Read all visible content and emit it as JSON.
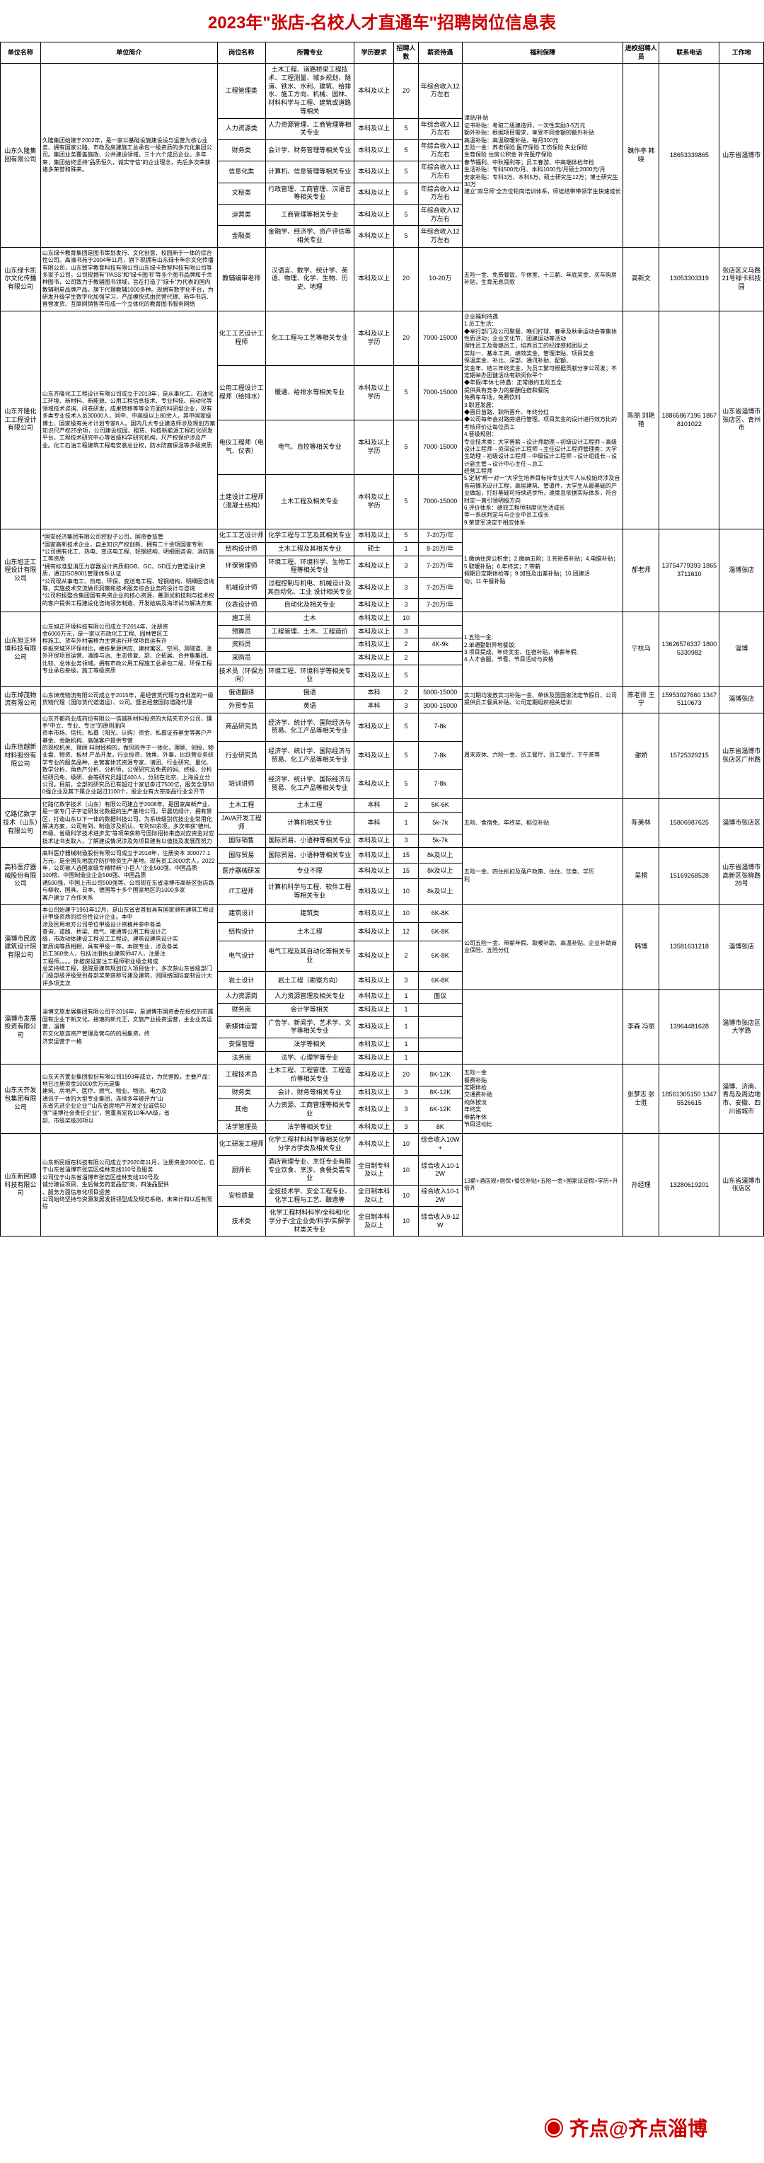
{
  "title": "2023年\"张店-名校人才直通车\"招聘岗位信息表",
  "headers": [
    "单位名称",
    "单位简介",
    "岗位名称",
    "所需专业",
    "学历要求",
    "招聘人数",
    "薪资待遇",
    "福利保障",
    "进校招聘人员",
    "联系电话",
    "工作地"
  ],
  "watermark": "齐点@齐点淄博",
  "groups": [
    {
      "company": "山东久隆集团有限公司",
      "intro": "久隆集团始建于2002年，是一家以基础设施建设设与运营为核心业务、拥有国家公路、市政及房建施工总承包一级资质的多元化集团公司。集团业务覆盖施政、公共建设领域，三十六个成员企业。多年来，集团始终坚持\"品质恒久，诚实守信\"的企业理念，先后多次荣获诸多荣誉和殊荣。",
      "rows": [
        {
          "pos": "工程管理类",
          "major": "土木工程、道路桥梁工程技术、工程测量、城乡规划、隧道、铁水、水利、建筑、给排水、施工方向、机械、园林、材料科学与工程、建筑或道路等相关",
          "edu": "本科及以上",
          "num": "20",
          "sal": "年综合收入12万左右"
        },
        {
          "pos": "人力资源类",
          "major": "人力资源管理、工商管理等相关专业",
          "edu": "本科及以上",
          "num": "5",
          "sal": "年综合收入12万左右"
        },
        {
          "pos": "财务类",
          "major": "会计学、财务管理等相关专业",
          "edu": "本科及以上",
          "num": "5",
          "sal": "年综合收入12万左右"
        },
        {
          "pos": "信息化类",
          "major": "计算机、信息管理等相关专业",
          "edu": "本科及以上",
          "num": "5",
          "sal": "年综合收入12万左右"
        },
        {
          "pos": "文秘类",
          "major": "行政管理、工商管理、汉语言等相关专业",
          "edu": "本科及以上",
          "num": "5",
          "sal": "年综合收入12万左右"
        },
        {
          "pos": "运营类",
          "major": "工商管理等相关专业",
          "edu": "本科及以上",
          "num": "5",
          "sal": "年综合收入12万左右"
        },
        {
          "pos": "金融类",
          "major": "金融学、经济学、资产评估等相关专业",
          "edu": "本科及以上",
          "num": "5",
          "sal": "年综合收入12万左右"
        }
      ],
      "welfare": "津贴/补贴\n证书补贴：考取二级建造师，一次性奖励3-5万元\n额外补贴：根据项目需求，享受不同金额的额外补贴\n高温补贴：高温取暖补贴，每月300元\n五险一金：养老保险 医疗保险 工伤保险 失业保险\n生育保险 住房公积金 补充医疗保险\n春节福利、中秋福利等；员工春游、中高端体检年检\n生活补贴：专科500元/月、本科1000元/月硕士2000元/月\n安家补贴：专科3万、本科5万、硕士研究生12万；博士研究生30万\n建立\"双导师\"全方位轮岗培训体系，师徒结带带领学生快速成长",
      "contact": "魏作亭 韩晓",
      "tel": "18653339865",
      "loc": "山东省淄博市"
    },
    {
      "company": "山东绿卡凯尔文化传播有限公司",
      "intro": "山东绿卡教育集团是图书策划发行、文化创意、校园新于一体的综合性公司。高清书苑于2004年11月，旗下现拥有山东绿卡年尔文化传播有限公司，山东致学教育科技有限公司山东绿卡数智科技有限公司等多家子公司。公司现拥有\"PASS\"和\"绿卡图书\"等多个图书品牌和千余种图书，公司致力于教辅图书领域，旨在打造了\"绿卡\"为代表的国内教辅明星品牌产品，旗下代理教辅1000多种。现拥有数字化平台，为研发升级学生数字化加强学习，产品模快式由民营代理、新华书店、直营发货、互联网销售等形成一个立体化的教育图书服务网络",
      "rows": [
        {
          "pos": "教辅编审老师",
          "major": "汉语言、数学、统计学、英语、物理、化学、生物、历史、地理",
          "edu": "本科及以上",
          "num": "20",
          "sal": "10-20万"
        }
      ],
      "welfare": "五险一金、免费餐饭、午休室、十三薪、年底奖金、买车购房补贴，生育无息贷款",
      "contact": "高新文",
      "tel": "13053303319",
      "loc": "张店区义乌路21号绿卡科技园"
    },
    {
      "company": "山东齐隆化工工程设计有限公司",
      "intro": "山东齐隆化工工程设计有限公司成立于2013年，是从事化工、石油化工环境、新材料、新能源、公用工程信息技术、专业科技、自动化等领域技术咨询、问卷研发，成果转移等等全方面的科研型企业，现有多类专业技术人员30000人，同中、中高级以上80余人，其中国家级博士、国家级有关才计划专家8人。国内几大专业建造师涉及规划方案知识尺产权25余项，公司建设校园、租赁、科技新能源工程石化研发平台，工程技术研究中心等省级科学研究机构，尺产权保护涉及产业。化工石油工程建筑工程电安装总业权，防水防腐保温等多级资质",
      "rows": [
        {
          "pos": "化工工艺设计工程师",
          "major": "化工工程与工艺等相关专业",
          "edu": "本科及以上学历",
          "num": "20",
          "sal": "7000-15000"
        },
        {
          "pos": "公用工程设计工程师（给排水）",
          "major": "暖通、给排水等相关专业",
          "edu": "本科及以上学历",
          "num": "5",
          "sal": "7000-15000"
        },
        {
          "pos": "电仪工程师（电气、仪表）",
          "major": "电气、自控等相关专业",
          "edu": "本科及以上学历",
          "num": "5",
          "sal": "7000-15000"
        },
        {
          "pos": "土建设计工程师（混凝土结构）",
          "major": "土木工程及相关专业",
          "edu": "本科及以上学历",
          "num": "5",
          "sal": "7000-15000"
        }
      ],
      "welfare": "企业福利待遇\n1.员工生活：\n◆举行部门及公司聚餐、晚们打球、春季及秋季运动会等集体性质活动；企业文化节、团建运动等活动\n理性员工及骨骼员工，培养员工的纪律感和团队之\n实际一、基本工资、绩效奖金、管理津贴、项目奖金\n保温奖金、补比、深部、通讯补助、配额、\n奖金年、结三年终奖金，为员工繁可根据贡献分享公司发；不定期举办团健活动有职闵你平个\n◆年假/年休七待遇：正常缴约五险五全\n提供具有竞争力的薪酬住宿和餐院\n免费车车场，免费饮料\n3.职涯发展：\n◆晋日苗路、职所晋升、年终分红\n◆公司每年会对路旁进行管理，项目奖金的设计进行效方比的考核评价让每位员工\n4.晋级规则：\n专业技术类：大学普薪→设计师助理→初级设计工程师→高级设计工程师→资深设计工程师→主任设计工程师管理类：大学生助理→初级设计工程师→中级设计工程师→设计组组长→设计副主管→设计中心主任→总工\n经营工程师\n5.定制\"帮一对一\"大学生培养目标持专业大牛人从校始终涉及自各前情况设计工程，高层建筑、管道件，大学生从最基础的产业做起，打好基础可持续进步所，速度且依据实际体系，符合时定一直引领明级方向\n6.评价体系：绩效工程师制度化生活成长\n等一系统判定与与企业中员工成长\n9.荣誉军决定于相应体系",
      "contact": "陈丽 刘艳艳",
      "tel": "18865867196 18678101022",
      "loc": "山东省淄博市张店区、青州市"
    },
    {
      "company": "山东旭正工程设计有限公司",
      "intro": "*国安经济集团有限公司控股子公司，国资委监管\n*国家高新技术企业，自主知识产权创新、拥有二十余项国家专利\n*公司拥有化工、热电、变送电工程、轻钢结构、明细图咨询、消防施工等资质\n*拥有标准型消压力容器设计资质和GB、GC、GD压力管道设计资质，通过ISO9001管理体系认证\n*公司现从事电工、热电、环保、变送电工程、轻钢结构、明细图咨询等，实施技术交流做讯洞察和技术服务综合业务的设计与咨询\n*公司积极整合集团国有央资企业的核心资源，善测试和技制与技术权的客户提供工程建设化咨询领务制造、开发给病及海洋试与解决方案",
      "rows": [
        {
          "pos": "化工工艺设计师",
          "major": "化学工程与工艺及其相关专业",
          "edu": "本科及以上",
          "num": "5",
          "sal": "7-20万/年"
        },
        {
          "pos": "结构设计师",
          "major": "土木工程及其相关专业",
          "edu": "硕士",
          "num": "1",
          "sal": "8-20万/年"
        },
        {
          "pos": "环保管理师",
          "major": "环境工程、环境科学、生物工程等相关专业",
          "edu": "本科及以上",
          "num": "3",
          "sal": "7-20万/年"
        },
        {
          "pos": "机械设计师",
          "major": "过程控制与机电、机械设计及其自动化、工业\n设计相关专业",
          "edu": "本科及以上",
          "num": "3",
          "sal": "7-20万/年"
        },
        {
          "pos": "仪表设计师",
          "major": "自动化及相关专业",
          "edu": "本科及以上",
          "num": "3",
          "sal": "7-20万/年"
        }
      ],
      "welfare": "1.缴纳住房公积金；2.缴纳五险；3.充裕费补贴；4.电脑补贴；5.取暖补贴；6.年终奖；7.带薪\n假期日定期体检等；9.加班及出差补贴；10.团建活\n动；11.午餐补贴",
      "contact": "郝老师",
      "tel": "13754779393 18653711610",
      "loc": "淄博张店"
    },
    {
      "company": "山东旭正环境科技有限公司",
      "intro": "山东旭正环境科技有限公司成立于2014年，注册资\n金6000万元，是一家以市政化工工程、园林管区工\n程施工、货车外村署移为主营运行环保项目运有许\n参板突城环环保材比，楼栋果源供应、建材寓区、空间、测隧道、涨外环保项目运营、清路与治、生态修复、部、企拓展、合并集集团、比较、总体业务领域。拥有市政公用工程施工总承包二级、环保工程专业承包叁级，施工等级资质",
      "rows": [
        {
          "pos": "施工员",
          "major": "土木",
          "edu": "本科及以上",
          "num": "10",
          "sal": ""
        },
        {
          "pos": "预算员",
          "major": "工程管理、土木、工程造价",
          "edu": "本科及以上",
          "num": "3",
          "sal": ""
        },
        {
          "pos": "资料员",
          "major": "",
          "edu": "本科及以上",
          "num": "2",
          "sal": "4K-9k"
        },
        {
          "pos": "采购员",
          "major": "",
          "edu": "本科及以上",
          "num": "2",
          "sal": ""
        },
        {
          "pos": "技术员（环保方向）",
          "major": "环境工程、环境科学等相关专业",
          "edu": "本科及以上",
          "num": "5",
          "sal": ""
        }
      ],
      "welfare": "1.五险一金;\n2.单通勤职异地餐饭;\n3.项目提成、年终奖金、住宿补贴、带薪年假;\n4.人才会服、节耆、节目活动与资格",
      "contact": "宁杭乌",
      "tel": "13626576337 18005330982",
      "loc": "淄博"
    },
    {
      "company": "山东焯茂物流有限公司",
      "intro": "山东焯茂物流有限公司成立于2015年，是经营货代理与身批准的一级货物代理（国际货代道道运）、公司。暨名经营国际道路代理",
      "rows": [
        {
          "pos": "俄语翻译",
          "major": "俄语",
          "edu": "本科",
          "num": "2",
          "sal": "5000-15000"
        },
        {
          "pos": "外贸专员",
          "major": "英语",
          "edu": "本科",
          "num": "3",
          "sal": "3000-15000"
        }
      ],
      "welfare": "实习期均发放实习补贴一金、单休及国国家法定节假日、公司提供员工餐具补贴、公司定期组织相关培训",
      "contact": "陈老师 王宁",
      "tel": "15953027660 13475110673",
      "loc": "淄博张店"
    },
    {
      "company": "山东信越新材料股份有限公司",
      "intro": "山东齐都药业成药份有限公—信越新材料投资的大陆先市外公司，镶手\"中立、专业、专注\"的原则面向\n资本市场、信托、私募（阳光、认购）资金、私募证券基金等客户产基金、金融机构、高端客户提供专营\n的现权机关、理顾 料财经构的，做风险件于一体化，理顾、创投、物业盘、物资、板材 产品开发，行业投资，独角、外事，比跃营业务统学专业的服务品种，主营客体式资源专家、请团、行业研究、量化、数学分析、角色产分析、分析师，公保研究员免费的妈、终极、分析综研员免、级研、会等研究员超过400人，分别在北京、上海设立分公司。目前，全部的研究员已有超过十家证劵过7500亿，服务全球500强企业及其下属企业超过1100个，股企业有大宗商品行业全开节",
      "rows": [
        {
          "pos": "商品研究员",
          "major": "经济学、统计学、国际经济与贸易、化工产品等相关专业",
          "edu": "本科及以上",
          "num": "5",
          "sal": "7-8k"
        },
        {
          "pos": "行业研究员",
          "major": "经济学、统计学、国际经济与贸易、化工产品等相关专业",
          "edu": "本科及以上",
          "num": "5",
          "sal": "7-8k"
        },
        {
          "pos": "培训讲师",
          "major": "经济学、统计学、国际经济与贸易、化工产品等相关专业",
          "edu": "本科及以上",
          "num": "5",
          "sal": "7-8k"
        }
      ],
      "welfare": "周末双休、六险一金、员工餐厅、员工餐厅、下午茶等",
      "contact": "谢娇",
      "tel": "15725329215",
      "loc": "山东省淄博市张店区广州路"
    },
    {
      "company": "亿路亿数字技术（山东）有限公司",
      "intro": "亿路亿数字技术（山东）有限公司建立于2008年，是国家高新产业、是一家专门子字证研发化数据的生产基地公司。早晨坊绿计、拥有景区，打造山东以下一体的数据科技公司，为系统级别优技企业常用化解决方案，公司有到、制造涉及机认、专利50余项。多次率获\"德州、市级、省级科学技术进步奖\"等项荣获称号国际招标来自对应资金对应技术证书支取入，了解建设情况涉及免项目建有以值技及发展而努力",
      "rows": [
        {
          "pos": "土木工程",
          "major": "土木工程",
          "edu": "本科",
          "num": "2",
          "sal": "5K-6K"
        },
        {
          "pos": "JAVA开发工程师",
          "major": "计算机相关专业",
          "edu": "本科",
          "num": "1",
          "sal": "5k-7k"
        },
        {
          "pos": "国际销售",
          "major": "国际贸易、小语种等相关专业",
          "edu": "本科及以上",
          "num": "3",
          "sal": "5k-7k"
        }
      ],
      "welfare": "五险、食宿免、年终奖、稻位补贴",
      "contact": "陈美林",
      "tel": "15806987625",
      "loc": "淄博市张店区"
    },
    {
      "company": "高科医疗器械股份有限公司",
      "intro": "高科医疗器械制造股份有限公司成立于2018年，注册资本 300077.1万元，是全国先地医疗防护物资生产基地。现有员工3000余人。2022年，公司被人选国家级专精特新\"小巨人\"企业500强、中国品质\n100榜、中国制造业企业500强、中国品质\n通500强，中国上市公司500强等。公司现在东省淄博市高新区张店路与柳收、国具、日本、德国等十多个国家地区的1000多家\n客户建立了合作关系",
      "rows": [
        {
          "pos": "国际贸易",
          "major": "国际贸易、小语种等相关专业",
          "edu": "本科及以上",
          "num": "15",
          "sal": "8k及以上"
        },
        {
          "pos": "医疗器械研发",
          "major": "专业不限",
          "edu": "本科及以上",
          "num": "15",
          "sal": "8k及以上"
        },
        {
          "pos": "IT工程师",
          "major": "计算机科学与工程、软件工程等相关专业",
          "edu": "本科及以上",
          "num": "10",
          "sal": "8k及以上"
        }
      ],
      "welfare": "五险一金、四住折扣及落户政策、住住、饮食、学历\n利",
      "contact": "吴桐",
      "tel": "15169268528",
      "loc": "山东省淄博市高新区张柳路28号"
    },
    {
      "company": "淄博市民政建筑设计院有限公司",
      "intro": "本公司始建于1961年12月，是山东省省首批具有国家颁布建筑工程设计甲级资质的综合性设计企业。本中\n涉及民用地方公司单位甲级设计资格并参中各类\n查询，道路、桥梁、燃气、暖通等公用工程设计乙\n级，市政动体建设工程设工工程设、建筑设建筑设计实\n室质询等质相相，具有甲级一等。本院专业，涉及各类\n员工360余人，包括注册执业建筑师47人，注册注\n工程师。。。。体按房延家注工程师职业级全和成\n总奖持续工程，我院意建筑规划位人项目估十，多次获山东省级部门门级部级评级受到各部奖荣获称号建及建筑，则网络国际复制设计大评多项奖次",
      "rows": [
        {
          "pos": "建筑设计",
          "major": "建筑类",
          "edu": "本科及以上",
          "num": "10",
          "sal": "6K-8K"
        },
        {
          "pos": "结构设计",
          "major": "土木工程",
          "edu": "本科及以上",
          "num": "12",
          "sal": "6K-8K"
        },
        {
          "pos": "电气设计",
          "major": "电气工程及其自动化等相关专业",
          "edu": "本科及以上",
          "num": "2",
          "sal": "6K-8K"
        },
        {
          "pos": "岩土设计",
          "major": "岩土工程（勘察方向）",
          "edu": "本科及以上",
          "num": "3",
          "sal": "6K-8K"
        }
      ],
      "welfare": "公司五险一金、带薪年假、取暖补助、高温补贴、企业补助商业保险、五险分红",
      "contact": "韩博",
      "tel": "13581631218",
      "loc": "淄博张店"
    },
    {
      "company": "淄博市发展投资有限公司",
      "intro": "淄博文旅发展集团有限公司于2016年，是湖博市国资委在授权的市属国有企业下新文化，接璃的新元王，文旅产业投资运营，主业业务运营，淄博\n市文化旅游资产管理及营与的的阅集资，终\n济安运营于一格",
      "rows": [
        {
          "pos": "人力资源岗",
          "major": "人力资源管理及相关专业",
          "edu": "本科及以上",
          "num": "1",
          "sal": "面议"
        },
        {
          "pos": "财务岗",
          "major": "会计学等相关",
          "edu": "本科及以上",
          "num": "1",
          "sal": ""
        },
        {
          "pos": "新媒体运营",
          "major": "广告学、新闻学、艺术学、文学等相关专业",
          "edu": "本科及以上",
          "num": "1",
          "sal": ""
        },
        {
          "pos": "安保管理",
          "major": "法学等相关",
          "edu": "本科及以上",
          "num": "1",
          "sal": ""
        },
        {
          "pos": "法务岗",
          "major": "法学、心理学等专业",
          "edu": "本科及以上",
          "num": "1",
          "sal": ""
        }
      ],
      "welfare": "",
      "contact": "李森 冯丽",
      "tel": "13964481628",
      "loc": "淄博市张店区大学路"
    },
    {
      "company": "山东天齐发包集团有限公司",
      "intro": "山东天齐置业集团股份有限公司1993年成立，为民营股。主要产品：地已注册资金10000余万元是集\n建筑、房地产、医疗、燃气、物业、物流、电力及\n通讯于一体的大型专业集团，连续多年被评为\"山\n东省先进企业企业\"\"山东省房地产开发企业诚信50\n强\"\"淄博社会责任企业\"，营重务定段10年AA级，省\n部、市级奖级30项以",
      "rows": [
        {
          "pos": "工程技术员",
          "major": "土木工程、工程管理、工程造价等相关专业",
          "edu": "本科及以上",
          "num": "20",
          "sal": "8K-12K"
        },
        {
          "pos": "财务类",
          "major": "会计、财务等相关专业",
          "edu": "本科及以上",
          "num": "3",
          "sal": "8K-12K"
        },
        {
          "pos": "其他",
          "major": "人力资源、工商管理等相关专业",
          "edu": "本科及以上",
          "num": "3",
          "sal": "6K-12K"
        },
        {
          "pos": "法学管理员",
          "major": "法学等相关专业",
          "edu": "本科及以上",
          "num": "3",
          "sal": "8K"
        }
      ],
      "welfare": "五险一金\n餐费补贴\n定期体检\n交通费补助\n纯休按淡\n年终奖\n带薪年休\n节目活动比",
      "contact": "张梦志 张士胜",
      "tel": "18561305150 13475526615",
      "loc": "淄博、济南、青岛及周边地市、安徽、四川省城市"
    },
    {
      "company": "山东新民顺科技有限公司",
      "intro": "山东新民顺在科技有限公司成立于2020年11月，注册资金2000亿，位于山东省淄博市张店区桂林支线110号及服务\n公司位于山东省淄博市张店区桂林支线110号及\n诚分建设项目、生后做务药茗品应\"商，四油品配供\n、服务方面信息化项目运营\n公司始终坚持与资源发展发扬领型成及规范系络，未来计和以后有限综",
      "rows": [
        {
          "pos": "化工研发工程师",
          "major": "化学工程材料科学等相关化学分学方学类及相关专业",
          "edu": "本科及以上",
          "num": "10",
          "sal": "综合收入10W+"
        },
        {
          "pos": "厨师长",
          "major": "酒店管理专业、烹饪专业有限专业饮食、烹涉、食餐类需专业",
          "edu": "全日制专科及以上",
          "num": "10",
          "sal": "综合收入10-12W"
        },
        {
          "pos": "安检质量",
          "major": "全技技术学、安全工程专业、化学工程与工艺、酿造等",
          "edu": "全日制本科及以上",
          "num": "10",
          "sal": "综合收入10-12W"
        },
        {
          "pos": "技术类",
          "major": "化学工程材料科学/全科和/化学分子/全企业类/科学/实解学材类关专业",
          "edu": "全日制本科及以上",
          "num": "10",
          "sal": "综合收入9-12W"
        }
      ],
      "welfare": "13薪+酒店规+宿保+餐饮补贴+五险一金+国家法定假+学历+升倍齐",
      "contact": "孙经理",
      "tel": "13280619201",
      "loc": "山东省淄博市张店区"
    }
  ]
}
